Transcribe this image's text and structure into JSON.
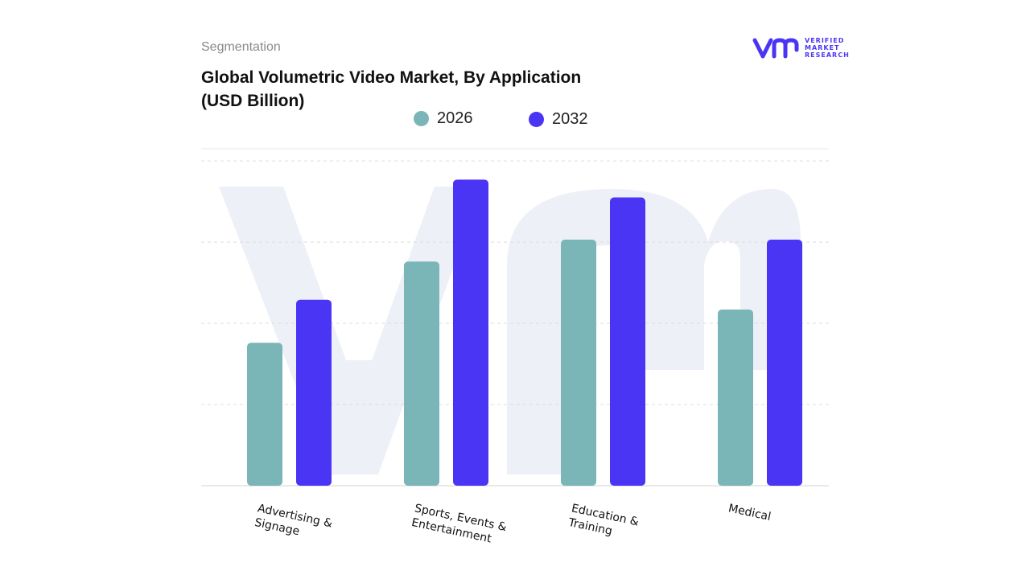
{
  "header": {
    "kicker": "Segmentation",
    "title": "Global Volumetric Video Market, By Application (USD Billion)"
  },
  "logo": {
    "mark": "vmr",
    "line1": "VERIFIED",
    "line2": "MARKET",
    "line3": "RESEARCH",
    "icon": "vmr-logo-icon"
  },
  "colors": {
    "series_2026": "#7ab5b7",
    "series_2032": "#4b35f5",
    "grid": "#dddddd",
    "watermark": "#eef0f8"
  },
  "chart_data": {
    "type": "bar",
    "title": "Global Volumetric Video Market, By Application (USD Billion)",
    "categories": [
      [
        "Advertising &",
        "Signage"
      ],
      [
        "Sports, Events &",
        "Entertainment"
      ],
      [
        "Education &",
        "Training"
      ],
      [
        "Medical"
      ]
    ],
    "series": [
      {
        "name": "2026",
        "values": [
          1.76,
          2.76,
          3.03,
          2.17
        ]
      },
      {
        "name": "2032",
        "values": [
          2.29,
          3.77,
          3.55,
          3.03
        ]
      }
    ],
    "ylim": [
      0,
      4.1
    ],
    "grid": true,
    "legend": "top-center",
    "xlabel": "",
    "ylabel": ""
  }
}
